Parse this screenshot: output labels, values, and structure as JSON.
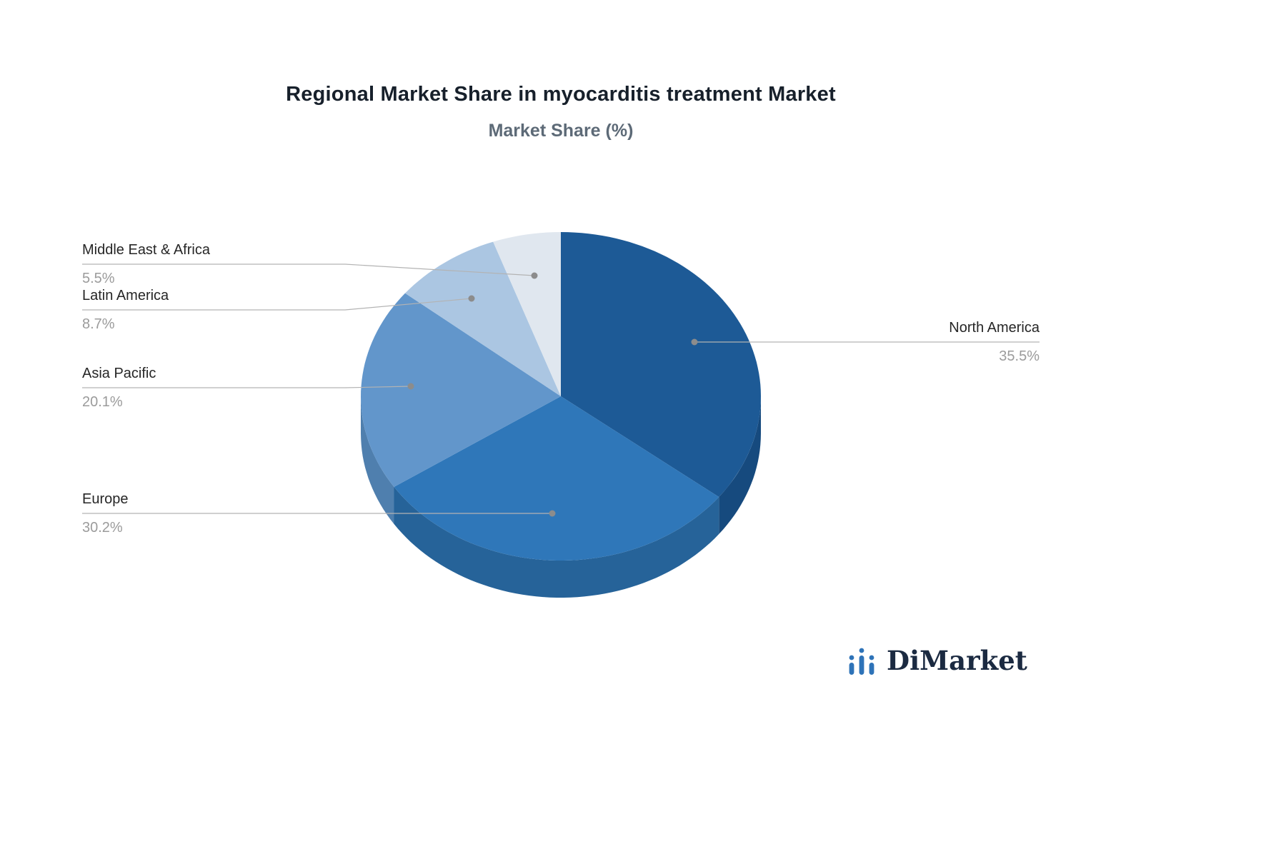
{
  "header": {
    "title": "Regional Market Share in myocarditis treatment Market",
    "subtitle": "Market Share (%)"
  },
  "chart_data": {
    "type": "pie",
    "title": "Regional Market Share in myocarditis treatment Market",
    "subtitle": "Market Share (%)",
    "unit": "%",
    "direction": "clockwise",
    "start_angle_deg": 0,
    "style": "3d-depth-pie",
    "legend_position": "callout-labels",
    "label_line_color": "#b3b3b3",
    "label_dot_color": "#8c8c8c",
    "label_text_color": "#262626",
    "pct_text_color": "#9b9b9b",
    "slices": [
      {
        "label": "North America",
        "value": 35.5,
        "display": "35.5%",
        "color": "#1d5a96",
        "depth_color": "#164a7e"
      },
      {
        "label": "Europe",
        "value": 30.2,
        "display": "30.2%",
        "color": "#2f77b9",
        "depth_color": "#266399"
      },
      {
        "label": "Asia Pacific",
        "value": 20.1,
        "display": "20.1%",
        "color": "#6296cb",
        "depth_color": "#4f7fae"
      },
      {
        "label": "Latin America",
        "value": 8.7,
        "display": "8.7%",
        "color": "#abc6e2"
      },
      {
        "label": "Middle East & Africa",
        "value": 5.5,
        "display": "5.5%",
        "color": "#e0e7ef"
      }
    ]
  },
  "branding": {
    "logo_text": "DiMarket",
    "logo_text_color": "#1b2a41",
    "icon_color": "#2e73b8"
  }
}
